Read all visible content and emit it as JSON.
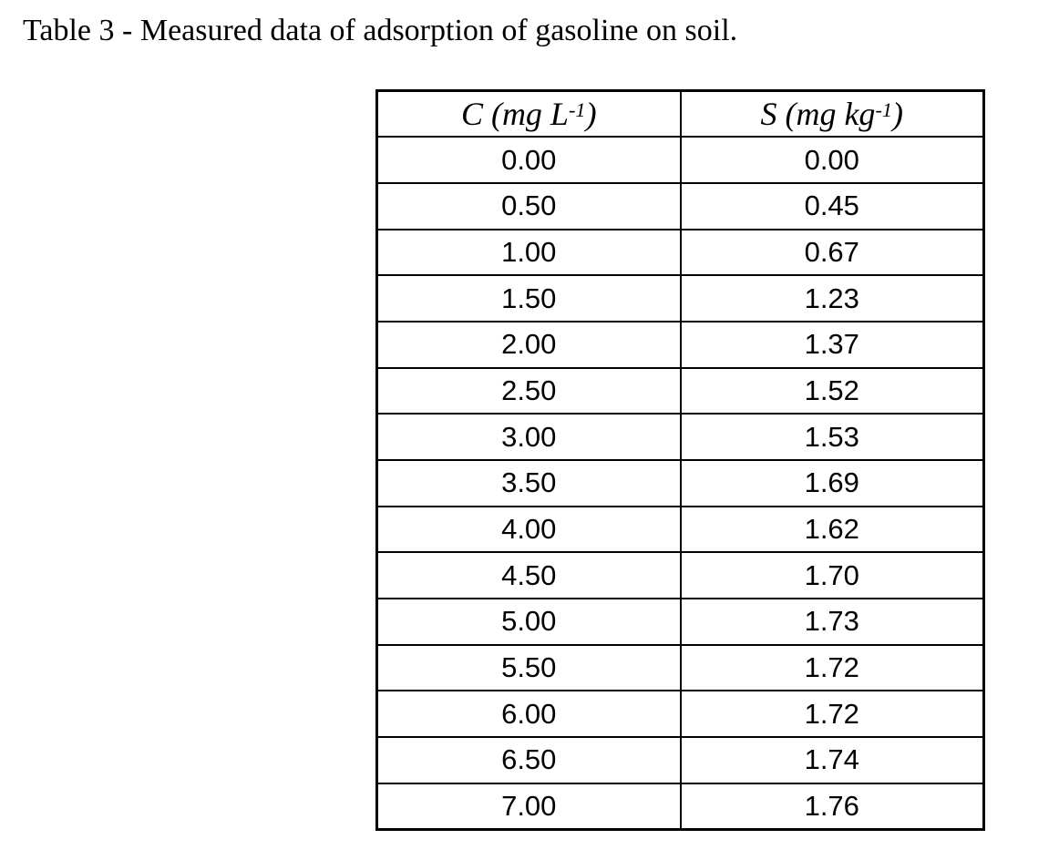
{
  "caption": "Table 3 - Measured data of adsorption of gasoline on soil.",
  "table": {
    "columns": [
      {
        "label_main": "C (mg L",
        "label_sup": "-1",
        "label_close": ")"
      },
      {
        "label_main": "S (mg kg",
        "label_sup": "-1",
        "label_close": ")"
      }
    ],
    "rows": [
      [
        "0.00",
        "0.00"
      ],
      [
        "0.50",
        "0.45"
      ],
      [
        "1.00",
        "0.67"
      ],
      [
        "1.50",
        "1.23"
      ],
      [
        "2.00",
        "1.37"
      ],
      [
        "2.50",
        "1.52"
      ],
      [
        "3.00",
        "1.53"
      ],
      [
        "3.50",
        "1.69"
      ],
      [
        "4.00",
        "1.62"
      ],
      [
        "4.50",
        "1.70"
      ],
      [
        "5.00",
        "1.73"
      ],
      [
        "5.50",
        "1.72"
      ],
      [
        "6.00",
        "1.72"
      ],
      [
        "6.50",
        "1.74"
      ],
      [
        "7.00",
        "1.76"
      ]
    ]
  },
  "chart_data": {
    "type": "table",
    "title": "Table 3 - Measured data of adsorption of gasoline on soil.",
    "columns": [
      "C (mg L-1)",
      "S (mg kg-1)"
    ],
    "C_mg_per_L": [
      0.0,
      0.5,
      1.0,
      1.5,
      2.0,
      2.5,
      3.0,
      3.5,
      4.0,
      4.5,
      5.0,
      5.5,
      6.0,
      6.5,
      7.0
    ],
    "S_mg_per_kg": [
      0.0,
      0.45,
      0.67,
      1.23,
      1.37,
      1.52,
      1.53,
      1.69,
      1.62,
      1.7,
      1.73,
      1.72,
      1.72,
      1.74,
      1.76
    ]
  }
}
